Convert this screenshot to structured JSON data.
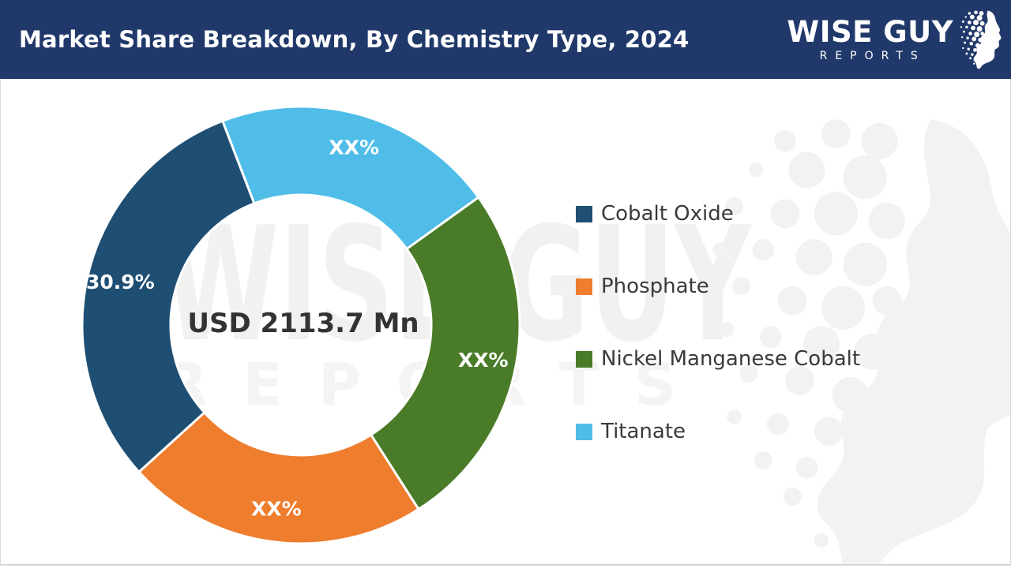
{
  "header": {
    "title": "Market Share Breakdown, By Chemistry Type, 2024",
    "logo": {
      "line1": "WISE GUY",
      "line2": "REPORTS"
    }
  },
  "watermark": {
    "line1": "WISE GUY",
    "line2": "REPORTS"
  },
  "chart_data": {
    "type": "pie",
    "variant": "donut",
    "title": "Market Share Breakdown, By Chemistry Type, 2024",
    "center_label": "USD 2113.7 Mn",
    "start_angle_deg": -21,
    "outer_radius": 277,
    "inner_radius": 165,
    "label_radius": 235,
    "segments": [
      {
        "name": "Titanate",
        "label": "XX%",
        "value": 20.9,
        "color": "#4fbde8"
      },
      {
        "name": "Nickel Manganese Cobalt",
        "label": "XX%",
        "value": 25.9,
        "color": "#4a7b28"
      },
      {
        "name": "Phosphate",
        "label": "XX%",
        "value": 22.3,
        "color": "#ee7d2e"
      },
      {
        "name": "Cobalt Oxide",
        "label": "30.9%",
        "value": 30.9,
        "color": "#1f4e73"
      }
    ],
    "legend": {
      "position": "right",
      "order": [
        "Cobalt Oxide",
        "Phosphate",
        "Nickel Manganese Cobalt",
        "Titanate"
      ]
    }
  },
  "colors": {
    "header_bg": "#21396a",
    "segment_gap": "#ffffff",
    "center_text": "#333333",
    "legend_text": "#3a3a3a",
    "watermark": "#f2f2f2",
    "panel_border": "#d9d9d9"
  }
}
